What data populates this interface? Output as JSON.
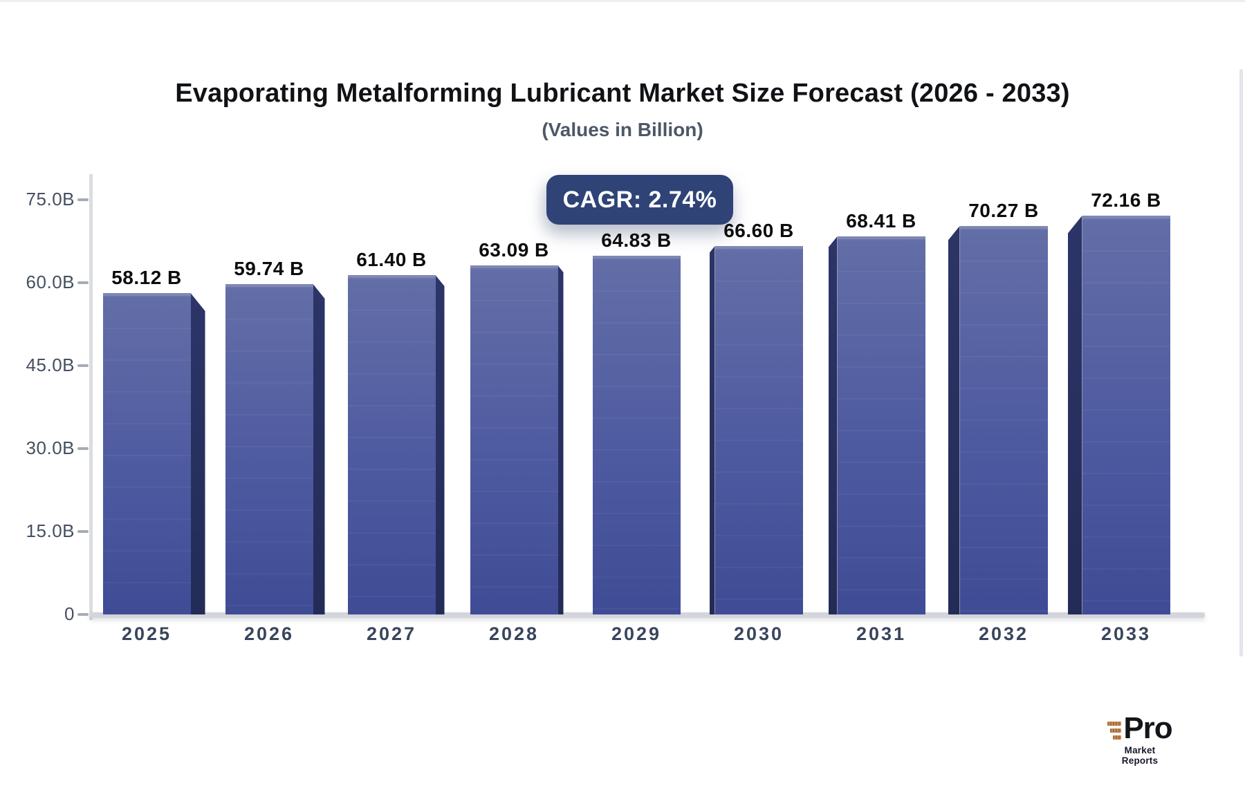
{
  "title": "Evaporating Metalforming Lubricant Market Size Forecast (2026 - 2033)",
  "subtitle": "(Values in Billion)",
  "annotation": {
    "cagr_label": "CAGR: 2.74%"
  },
  "chart_data": {
    "type": "bar",
    "categories": [
      "2025",
      "2026",
      "2027",
      "2028",
      "2029",
      "2030",
      "2031",
      "2032",
      "2033"
    ],
    "values": [
      58.12,
      59.74,
      61.4,
      63.09,
      64.83,
      66.6,
      68.41,
      70.27,
      72.16
    ],
    "value_labels": [
      "58.12 B",
      "59.74 B",
      "61.40 B",
      "63.09 B",
      "64.83 B",
      "66.60 B",
      "68.41 B",
      "70.27 B",
      "72.16 B"
    ],
    "title": "Evaporating Metalforming Lubricant Market Size Forecast (2026 - 2033)",
    "subtitle": "(Values in Billion)",
    "annotation_text": "CAGR: 2.74%",
    "xlabel": "",
    "ylabel": "",
    "ylim": [
      0,
      75
    ],
    "yticks": [
      {
        "label": "75.0B",
        "value": 75
      },
      {
        "label": "60.0B",
        "value": 60
      },
      {
        "label": "45.0B",
        "value": 45
      },
      {
        "label": "30.0B",
        "value": 30
      },
      {
        "label": "15.0B",
        "value": 15
      },
      {
        "label": "0",
        "value": 0
      }
    ],
    "grid": false,
    "legend": false,
    "bar_style_3d": true
  },
  "colors": {
    "bar_top": "#636ea7",
    "bar_bottom": "#3f4b94",
    "bar_side": "#283162",
    "badge_bg": "#2f4377",
    "axis": "#d3d5dc",
    "title_text": "#101216",
    "subtitle_text": "#4d5766",
    "logo_orange": "#cd8c55"
  },
  "branding": {
    "name": "Pro",
    "tagline": "Market Reports"
  }
}
